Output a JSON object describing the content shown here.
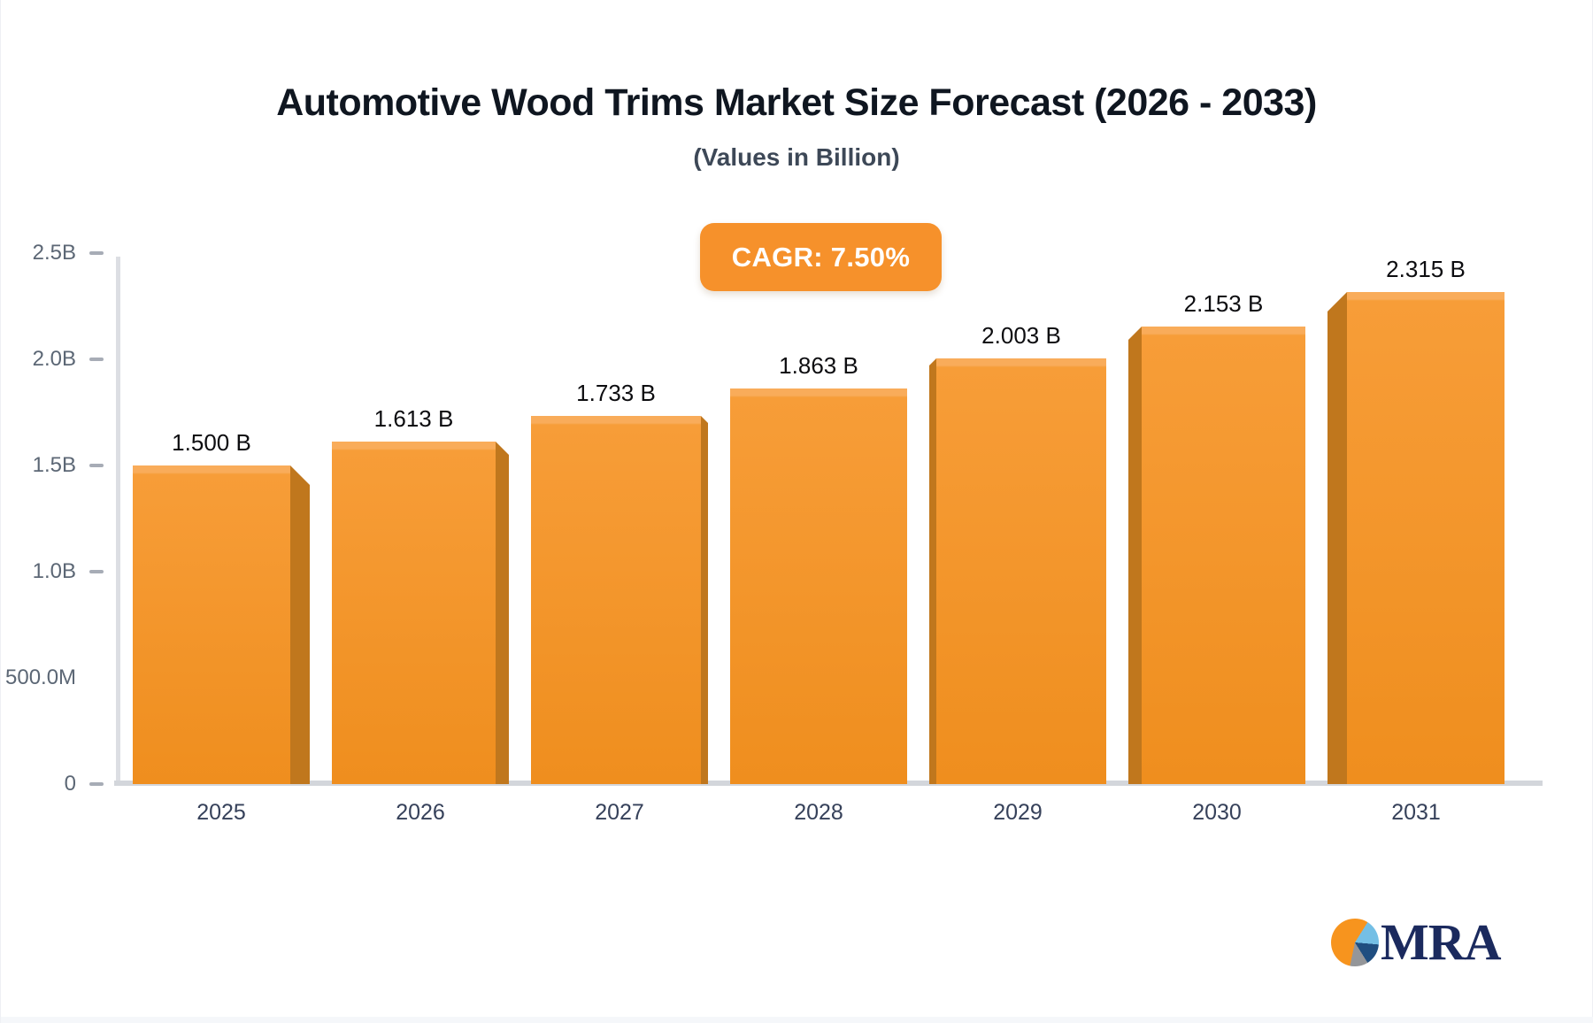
{
  "title": "Automotive Wood Trims Market Size Forecast (2026 - 2033)",
  "subtitle": "(Values in Billion)",
  "badge": {
    "label": "CAGR: 7.50%",
    "bg": "#F6912B"
  },
  "chart_data": {
    "type": "bar",
    "title": "Automotive Wood Trims Market Size Forecast (2026 - 2033)",
    "subtitle": "(Values in Billion)",
    "unit": "Billion USD",
    "categories": [
      "2025",
      "2026",
      "2027",
      "2028",
      "2029",
      "2030",
      "2031"
    ],
    "values": [
      1.5,
      1.613,
      1.733,
      1.863,
      2.003,
      2.153,
      2.315
    ],
    "bar_labels": [
      "1.500 B",
      "1.613 B",
      "1.733 B",
      "1.863 B",
      "2.003 B",
      "2.153 B",
      "2.315 B"
    ],
    "cagr": "7.50%",
    "ylim": [
      0,
      2.5
    ],
    "grid": false,
    "legend": false,
    "yticks": [
      {
        "label": "0",
        "value": 0.0,
        "dash": true
      },
      {
        "label": "500.0M",
        "value": 0.5,
        "dash": false
      },
      {
        "label": "1.0B",
        "value": 1.0,
        "dash": true
      },
      {
        "label": "1.5B",
        "value": 1.5,
        "dash": true
      },
      {
        "label": "2.0B",
        "value": 2.0,
        "dash": true
      },
      {
        "label": "2.5B",
        "value": 2.5,
        "dash": true
      }
    ],
    "colors": {
      "bar_top_band": "#F9AC5A",
      "bar_body_top": "#F79D38",
      "bar_body_bottom": "#EF8E1E",
      "bar_side": "#C0771D",
      "axis_line": "#DCDEE3",
      "baseline": "#D3D6DB",
      "tick": "#A7ACB6",
      "axis_label": "#5C6775",
      "year_label": "#36415A",
      "value_label": "#0D0D10"
    }
  },
  "logo": {
    "text": "MRA",
    "text_color": "#1B2A5E",
    "pie_colors": {
      "orange": "#F7941E",
      "light_blue": "#74BFE5",
      "navy": "#1F4E80",
      "gray": "#949699"
    }
  }
}
